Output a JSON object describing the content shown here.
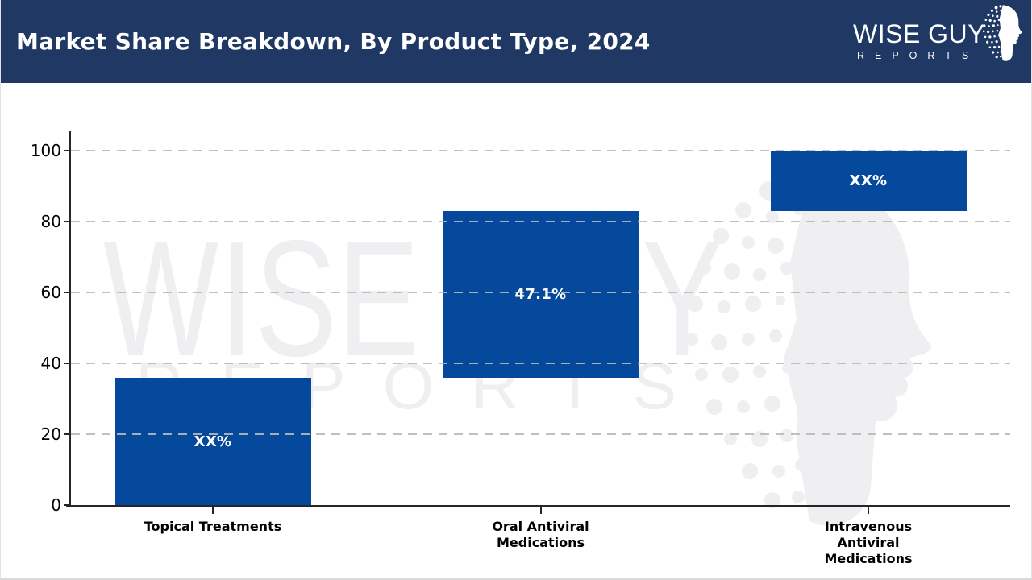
{
  "header": {
    "title": "Market Share Breakdown, By Product Type, 2024",
    "logo": {
      "name": "WISE GUY",
      "sub": "REPORTS"
    }
  },
  "watermark": {
    "name": "WISE GUY",
    "sub": "REPORTS"
  },
  "chart_data": {
    "type": "bar",
    "subtype": "stacked-waterfall",
    "title": "Market Share Breakdown, By Product Type, 2024",
    "categories": [
      [
        "Topical Treatments"
      ],
      [
        "Oral Antiviral",
        "Medications"
      ],
      [
        "Intravenous",
        "Antiviral",
        "Medications"
      ]
    ],
    "bars": [
      {
        "category": "Topical Treatments",
        "label": "XX%",
        "base": 0,
        "top": 35.8
      },
      {
        "category": "Oral Antiviral Medications",
        "label": "47.1%",
        "base": 35.8,
        "top": 82.9
      },
      {
        "category": "Intravenous Antiviral Medications",
        "label": "XX%",
        "base": 82.9,
        "top": 100
      }
    ],
    "yticks": [
      0,
      20,
      40,
      60,
      80,
      100
    ],
    "ylim": [
      0,
      105.7
    ],
    "xlabel": "",
    "ylabel": "",
    "grid": "horizontal-dashed",
    "legend": "none",
    "bar_color": "#05499c",
    "bar_label_color": "#ffffff"
  },
  "colors": {
    "header_bg": "#1f3864",
    "header_text": "#ffffff",
    "chart_bg": "#ffffff",
    "axis": "#262626",
    "gridline": "#cfcfcf",
    "tick_label": "#000000",
    "watermark": "#efeff1"
  }
}
